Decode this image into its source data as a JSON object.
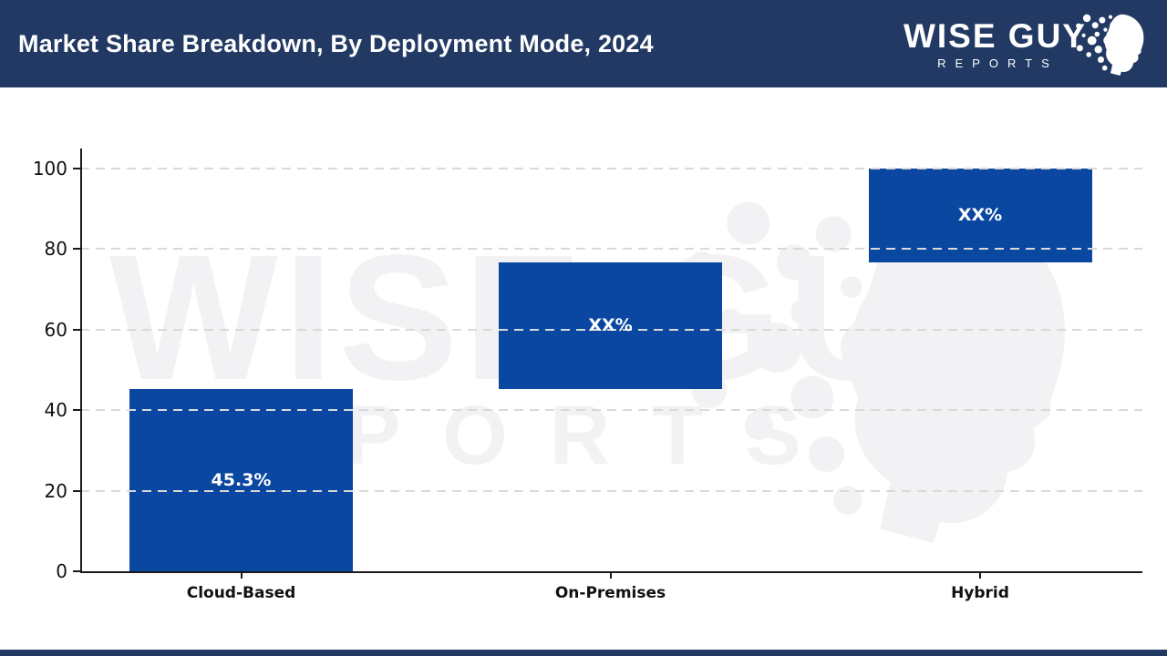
{
  "header": {
    "title": "Market Share Breakdown, By Deployment Mode, 2024",
    "logo": {
      "line1": "WISE GUY",
      "line2": "REPORTS"
    }
  },
  "watermark": {
    "line1": "WISE GUY",
    "line2": "REPORTS"
  },
  "chart_data": {
    "type": "bar",
    "subtype": "waterfall-floating-bars",
    "title": "Market Share Breakdown, By Deployment Mode, 2024",
    "categories": [
      "Cloud-Based",
      "On-Premises",
      "Hybrid"
    ],
    "segments": [
      {
        "category": "Cloud-Based",
        "start": 0,
        "end": 45.3,
        "label": "45.3%"
      },
      {
        "category": "On-Premises",
        "start": 45.3,
        "end": 76.8,
        "label": "XX%"
      },
      {
        "category": "Hybrid",
        "start": 76.8,
        "end": 100,
        "label": "XX%"
      }
    ],
    "xlabel": "",
    "ylabel": "",
    "ylim": [
      0,
      100
    ],
    "yticks": [
      0,
      20,
      40,
      60,
      80,
      100
    ],
    "grid": "horizontal dashed, drawn over bars",
    "legend": "none",
    "bar_color": "#0a47a0",
    "value_label_color": "#ffffff"
  },
  "colors": {
    "header_bg": "#223a63",
    "footer_bg": "#223a63",
    "bar": "#0a47a0",
    "watermark": "#f2f2f4",
    "gridline": "#d9d9d9",
    "axis": "#1a1a1a"
  }
}
